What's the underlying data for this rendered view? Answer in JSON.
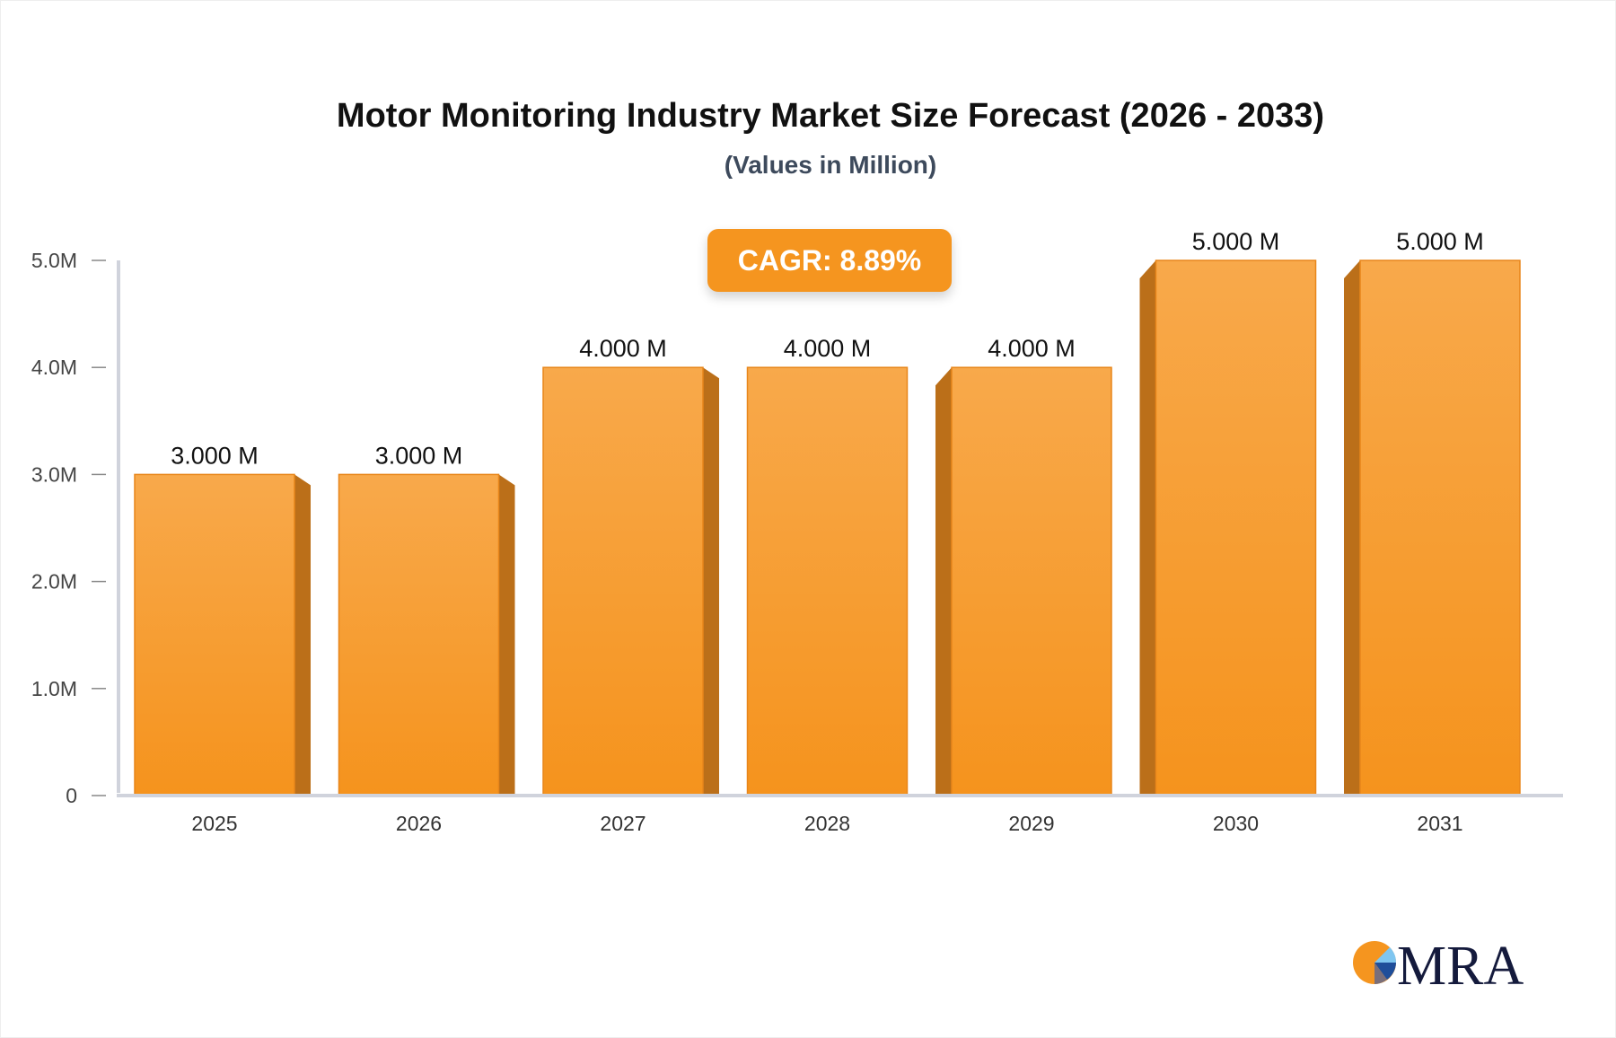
{
  "chart_data": {
    "type": "bar",
    "title": "Motor Monitoring Industry Market Size Forecast (2026 - 2033)",
    "subtitle": "(Values in Million)",
    "annotation": "CAGR: 8.89%",
    "categories": [
      "2025",
      "2026",
      "2027",
      "2028",
      "2029",
      "2030",
      "2031"
    ],
    "values": [
      3.0,
      3.0,
      4.0,
      4.0,
      4.0,
      5.0,
      5.0
    ],
    "data_labels": [
      "3.000 M",
      "3.000 M",
      "4.000 M",
      "4.000 M",
      "4.000 M",
      "5.000 M",
      "5.000 M"
    ],
    "yticks": [
      0,
      1,
      2,
      3,
      4,
      5
    ],
    "ytick_labels": [
      "0",
      "1.0M",
      "2.0M",
      "3.0M",
      "4.0M",
      "5.0M"
    ],
    "ylim": [
      0,
      5
    ],
    "xlabel": "",
    "ylabel": "",
    "grid": false,
    "colors": {
      "bar_top": "#f8a94b",
      "bar_bottom": "#f5931d",
      "bar_side": "#bb6f19",
      "axis": "#d0d3dc"
    }
  },
  "logo": {
    "text": "MRA"
  }
}
